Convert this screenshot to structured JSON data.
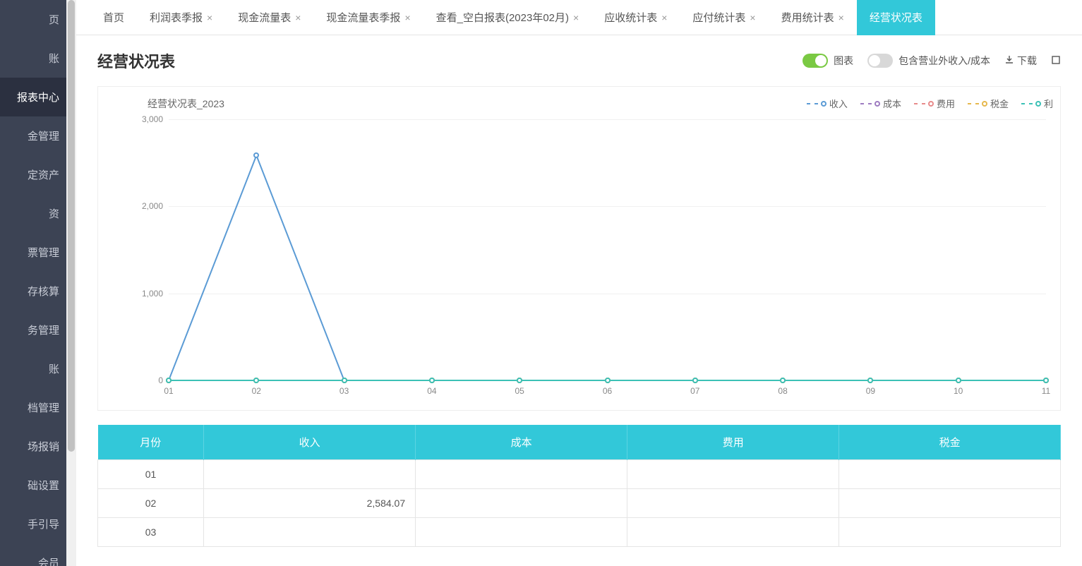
{
  "sidebar": {
    "items": [
      {
        "label": "页",
        "active": false
      },
      {
        "label": "账",
        "active": false
      },
      {
        "label": "报表中心",
        "active": true
      },
      {
        "label": "金管理",
        "active": false
      },
      {
        "label": "定资产",
        "active": false
      },
      {
        "label": "资",
        "active": false
      },
      {
        "label": "票管理",
        "active": false
      },
      {
        "label": "存核算",
        "active": false
      },
      {
        "label": "务管理",
        "active": false
      },
      {
        "label": "账",
        "active": false
      },
      {
        "label": "档管理",
        "active": false
      },
      {
        "label": "场报销",
        "active": false
      },
      {
        "label": "础设置",
        "active": false
      },
      {
        "label": "手引导",
        "active": false
      },
      {
        "label": "会员",
        "active": false
      }
    ]
  },
  "tabs": [
    {
      "label": "首页",
      "closable": false,
      "active": false
    },
    {
      "label": "利润表季报",
      "closable": true,
      "active": false
    },
    {
      "label": "现金流量表",
      "closable": true,
      "active": false
    },
    {
      "label": "现金流量表季报",
      "closable": true,
      "active": false
    },
    {
      "label": "查看_空白报表(2023年02月)",
      "closable": true,
      "active": false
    },
    {
      "label": "应收统计表",
      "closable": true,
      "active": false
    },
    {
      "label": "应付统计表",
      "closable": true,
      "active": false
    },
    {
      "label": "费用统计表",
      "closable": true,
      "active": false
    },
    {
      "label": "经营状况表",
      "closable": false,
      "active": true
    }
  ],
  "header": {
    "title": "经营状况表",
    "chart_toggle_label": "图表",
    "include_toggle_label": "包含营业外收入/成本",
    "download_label": "下载"
  },
  "chart": {
    "title": "经营状况表_2023",
    "type": "line",
    "y_max": 3000,
    "y_ticks": [
      0,
      1000,
      2000,
      3000
    ],
    "y_tick_labels": [
      "0",
      "1,000",
      "2,000",
      "3,000"
    ],
    "x_labels": [
      "01",
      "02",
      "03",
      "04",
      "05",
      "06",
      "07",
      "08",
      "09",
      "10",
      "11"
    ],
    "series": [
      {
        "name": "收入",
        "color": "#5b9bd5",
        "values": [
          0,
          2584.07,
          0,
          0,
          0,
          0,
          0,
          0,
          0,
          0,
          0
        ]
      },
      {
        "name": "成本",
        "color": "#9e7cc1",
        "values": [
          0,
          0,
          0,
          0,
          0,
          0,
          0,
          0,
          0,
          0,
          0
        ]
      },
      {
        "name": "费用",
        "color": "#e88b8b",
        "values": [
          0,
          0,
          0,
          0,
          0,
          0,
          0,
          0,
          0,
          0,
          0
        ]
      },
      {
        "name": "税金",
        "color": "#e6b84d",
        "values": [
          0,
          0,
          0,
          0,
          0,
          0,
          0,
          0,
          0,
          0,
          0
        ]
      },
      {
        "name": "利",
        "color": "#3cc1b6",
        "values": [
          0,
          0,
          0,
          0,
          0,
          0,
          0,
          0,
          0,
          0,
          0
        ]
      }
    ],
    "background": "#ffffff",
    "grid_color": "#f0f0f0",
    "axis_color": "#cccccc"
  },
  "table": {
    "columns": [
      "月份",
      "收入",
      "成本",
      "费用",
      "税金"
    ],
    "col_widths": [
      "11%",
      "22%",
      "22%",
      "22%",
      "23%"
    ],
    "rows": [
      {
        "month": "01",
        "income": "",
        "cost": "",
        "expense": "",
        "tax": ""
      },
      {
        "month": "02",
        "income": "2,584.07",
        "cost": "",
        "expense": "",
        "tax": ""
      },
      {
        "month": "03",
        "income": "",
        "cost": "",
        "expense": "",
        "tax": ""
      }
    ]
  },
  "colors": {
    "accent": "#32c8d9",
    "sidebar_bg": "#3c4354",
    "sidebar_active": "#2b3040",
    "toggle_on": "#7ac943"
  }
}
